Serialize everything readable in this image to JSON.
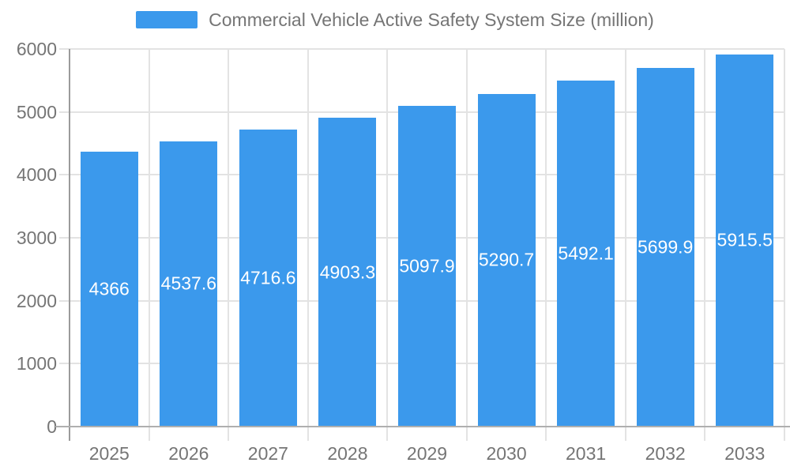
{
  "legend": {
    "label": "Commercial Vehicle Active Safety System Size (million)"
  },
  "colors": {
    "bar": "#3B99EC",
    "grid": "#E3E3E3",
    "x_axis": "#AFAFAF",
    "y_axis": "#9B9B9B",
    "tick_text": "#757575",
    "value_text": "#FFFFFF",
    "background": "#FFFFFF"
  },
  "chart_data": {
    "type": "bar",
    "title": "Commercial Vehicle Active Safety System Size (million)",
    "categories": [
      "2025",
      "2026",
      "2027",
      "2028",
      "2029",
      "2030",
      "2031",
      "2032",
      "2033"
    ],
    "values": [
      4366,
      4537.6,
      4716.6,
      4903.3,
      5097.9,
      5290.7,
      5492.1,
      5699.9,
      5915.5
    ],
    "value_labels": [
      "4366",
      "4537.6",
      "4716.6",
      "4903.3",
      "5097.9",
      "5290.7",
      "5492.1",
      "5699.9",
      "5915.5"
    ],
    "xlabel": "",
    "ylabel": "",
    "ylim": [
      0,
      6000
    ],
    "yticks": [
      0,
      1000,
      2000,
      3000,
      4000,
      5000,
      6000
    ],
    "grid": true,
    "legend_position": "top",
    "value_label_position": "center-of-bar"
  }
}
